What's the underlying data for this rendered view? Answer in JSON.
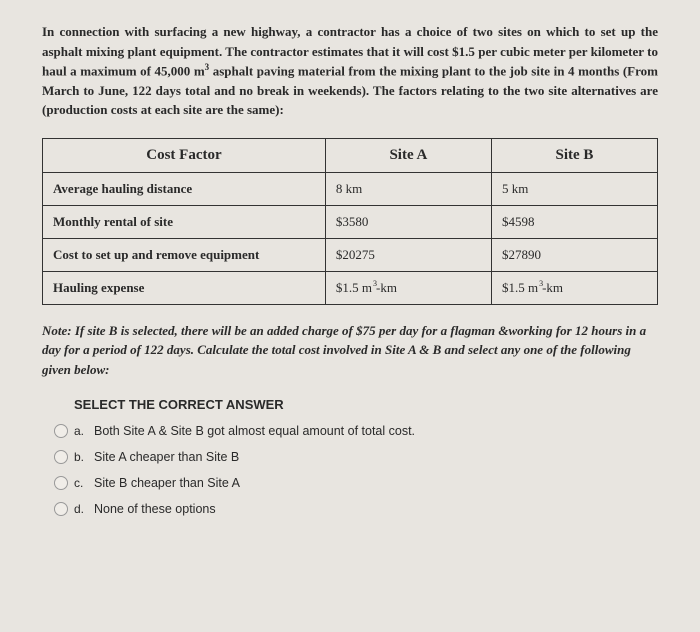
{
  "problem": {
    "text": "In connection with surfacing a new highway, a contractor has a choice of two sites on which to set up the asphalt mixing plant equipment. The contractor estimates that it will cost $1.5 per cubic meter per kilometer to haul a maximum of 45,000 m³ asphalt paving material from the mixing plant to the job site in 4 months (From March to June, 122 days total and no break in weekends). The factors relating to the two site alternatives are (production costs at each site are the same):"
  },
  "table": {
    "headers": {
      "col1": "Cost Factor",
      "col2": "Site A",
      "col3": "Site B"
    },
    "rows": [
      {
        "factor": "Average hauling distance",
        "siteA": "8 km",
        "siteB": "5 km"
      },
      {
        "factor": "Monthly rental of site",
        "siteA": "$3580",
        "siteB": "$4598"
      },
      {
        "factor": "Cost to set up and remove equipment",
        "siteA": "$20275",
        "siteB": "$27890"
      },
      {
        "factor": "Hauling expense",
        "siteA": "$1.5 m³-km",
        "siteB": "$1.5 m³-km"
      }
    ]
  },
  "note": {
    "label": "Note:",
    "text": "If site B is selected, there will be an added charge of $75 per day for a flagman &working for 12 hours in a day for a period of 122 days. Calculate the total cost involved in Site A & B and select any one of the following given below:"
  },
  "question": {
    "header": "SELECT THE CORRECT ANSWER",
    "options": [
      {
        "letter": "a.",
        "text": "Both Site A & Site B got almost equal amount of total cost."
      },
      {
        "letter": "b.",
        "text": "Site A cheaper than Site B"
      },
      {
        "letter": "c.",
        "text": "Site B cheaper than Site A"
      },
      {
        "letter": "d.",
        "text": "None of these options"
      }
    ]
  }
}
